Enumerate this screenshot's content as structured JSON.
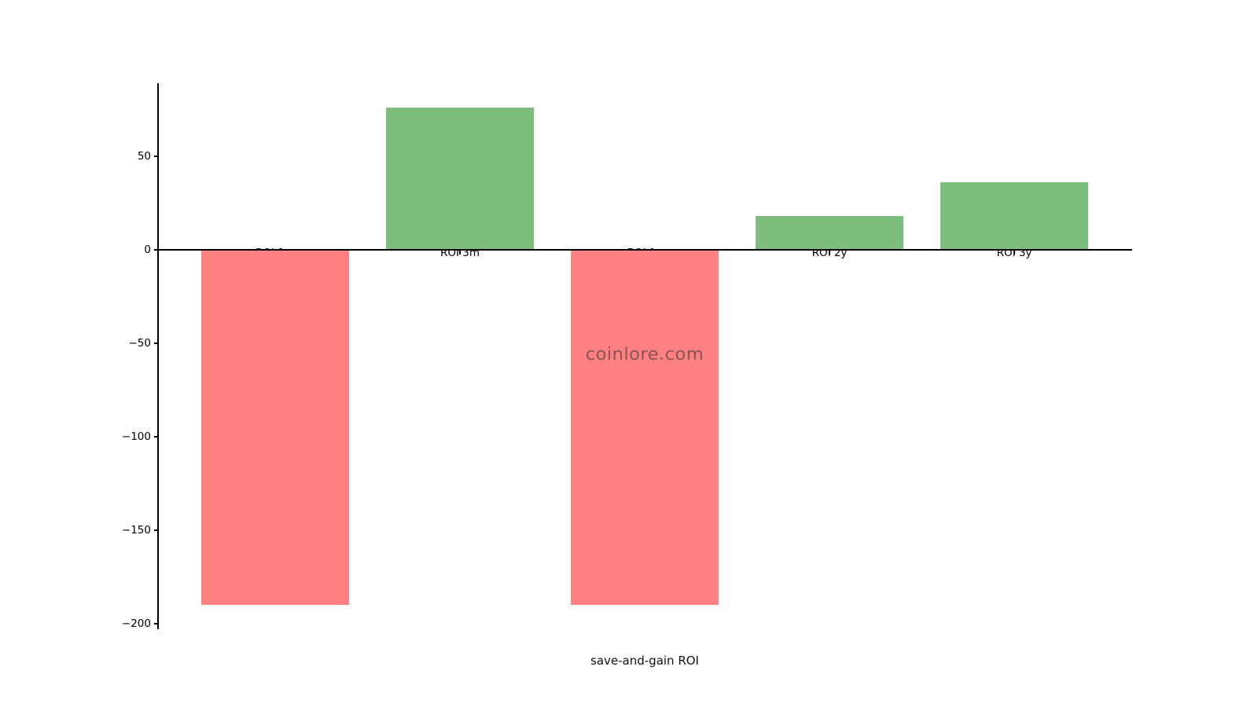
{
  "chart_data": {
    "type": "bar",
    "title": "save-and-gain ROI",
    "watermark": "coinlore.com",
    "categories": [
      "ROI 1m",
      "ROI 3m",
      "ROI 1y",
      "ROI 2y",
      "ROI 3y"
    ],
    "values": [
      -190,
      76,
      -190,
      18,
      36
    ],
    "occluded_category_label_indices": [
      0,
      2
    ],
    "yticks": [
      50,
      0,
      -50,
      -100,
      -150,
      -200
    ],
    "ylim": [
      -203,
      89
    ],
    "xlabel": "",
    "ylabel": "",
    "grid": false,
    "legend_position": "none",
    "colors": {
      "positive": "#7dbe7d",
      "negative": "#ff8080",
      "axis": "#000000",
      "tick_text": "#000000",
      "watermark_text": "#3c3c3c"
    }
  }
}
